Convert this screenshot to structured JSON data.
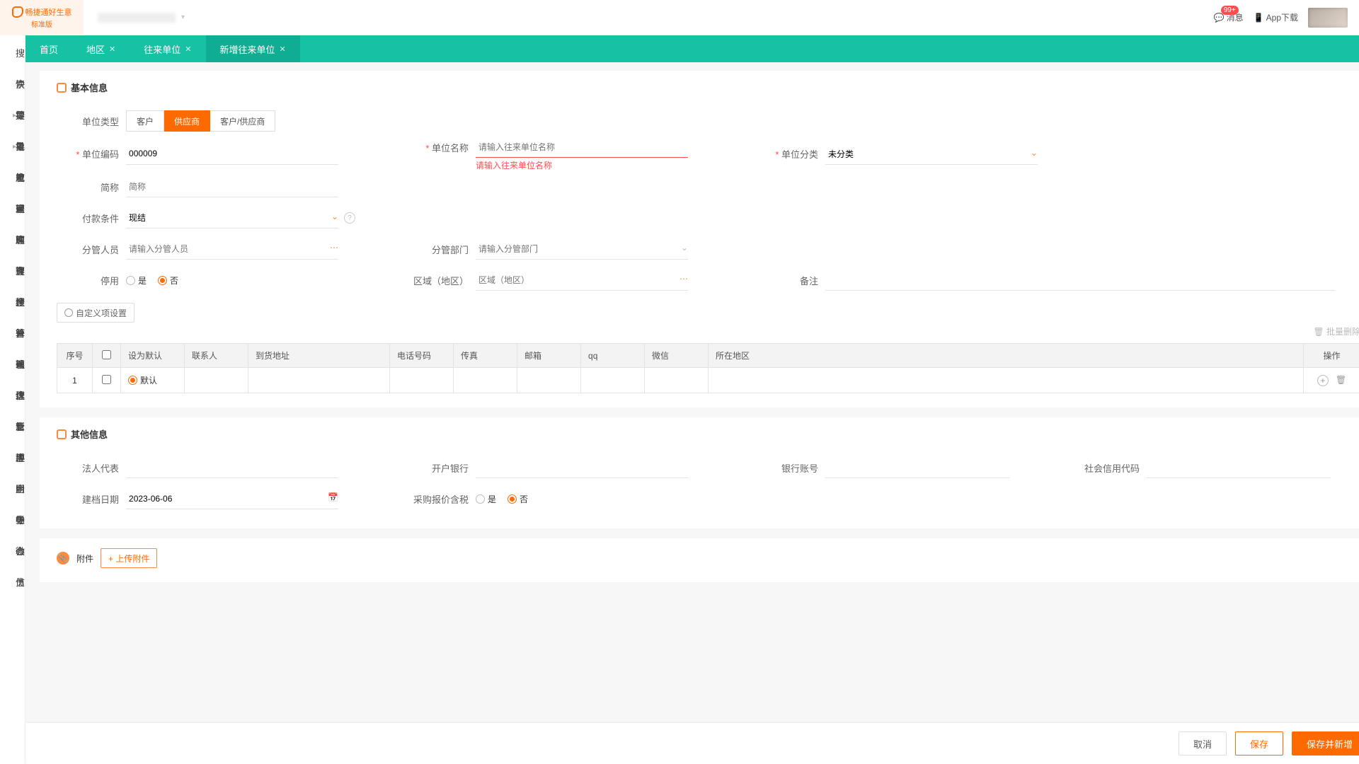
{
  "brand": {
    "name": "畅捷通好生意",
    "edition": "标准版"
  },
  "topbar": {
    "msg_label": "消息",
    "msg_badge": "99+",
    "download_label": "App下载"
  },
  "sidebar": {
    "items": [
      {
        "label": "搜索菜单"
      },
      {
        "label": "快捷导航"
      },
      {
        "label": "零售管理",
        "exp": true
      },
      {
        "label": "批发管理",
        "exp": true
      },
      {
        "label": "电商管理"
      },
      {
        "label": "采购管理"
      },
      {
        "label": "库存核算"
      },
      {
        "label": "资金管理"
      },
      {
        "label": "经营管理"
      },
      {
        "label": "基础信息"
      },
      {
        "label": "系统管理"
      },
      {
        "label": "企业协同"
      },
      {
        "label": "新手引导"
      },
      {
        "label": "应用中心"
      },
      {
        "label": "企业微信"
      },
      {
        "label": "畅会员"
      }
    ]
  },
  "tabs": {
    "items": [
      {
        "label": "首页",
        "closable": false
      },
      {
        "label": "地区",
        "closable": true
      },
      {
        "label": "往来单位",
        "closable": true
      },
      {
        "label": "新增往来单位",
        "closable": true,
        "active": true
      }
    ]
  },
  "section_basic": "基本信息",
  "section_other": "其他信息",
  "labels": {
    "unit_type": "单位类型",
    "unit_code": "单位编码",
    "unit_name": "单位名称",
    "unit_category": "单位分类",
    "short_name": "简称",
    "pay_term": "付款条件",
    "staff": "分管人员",
    "dept": "分管部门",
    "disabled": "停用",
    "region": "区域（地区）",
    "remark": "备注",
    "legal": "法人代表",
    "bank": "开户银行",
    "account": "银行账号",
    "credit": "社会信用代码",
    "file_date": "建档日期",
    "tax_incl": "采购报价含税"
  },
  "unit_type_opts": [
    "客户",
    "供应商",
    "客户/供应商"
  ],
  "unit_type_selected": 1,
  "values": {
    "unit_code": "000009",
    "unit_category": "未分类",
    "pay_term": "现结",
    "file_date": "2023-06-06"
  },
  "placeholders": {
    "unit_name": "请输入往来单位名称",
    "short_name": "简称",
    "staff": "请输入分管人员",
    "dept": "请输入分管部门",
    "region": "区域（地区）"
  },
  "errors": {
    "unit_name": "请输入往来单位名称"
  },
  "radio": {
    "yes": "是",
    "no": "否"
  },
  "custom_btn": "自定义项设置",
  "batch_delete": "批量删除",
  "table": {
    "cols": [
      "序号",
      "",
      "设为默认",
      "联系人",
      "到货地址",
      "电话号码",
      "传真",
      "邮箱",
      "qq",
      "微信",
      "所在地区",
      "操作"
    ],
    "row1_no": "1",
    "row1_default": "默认"
  },
  "attach": {
    "label": "附件",
    "upload": "+ 上传附件"
  },
  "footer": {
    "cancel": "取消",
    "save": "保存",
    "save_new": "保存并新增"
  }
}
